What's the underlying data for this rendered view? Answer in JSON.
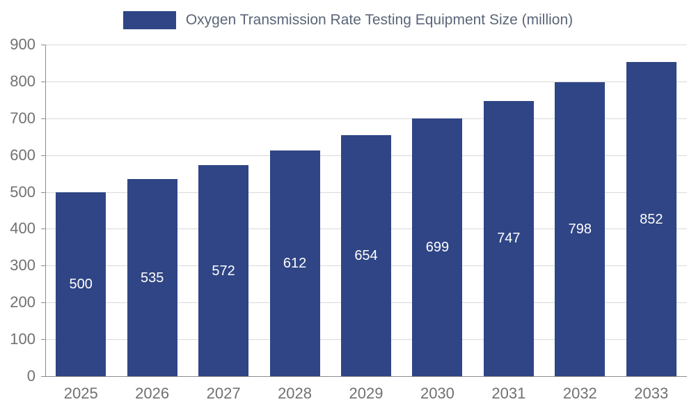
{
  "chart_data": {
    "type": "bar",
    "title": "Oxygen Transmission Rate Testing Equipment Size (million)",
    "categories": [
      "2025",
      "2026",
      "2027",
      "2028",
      "2029",
      "2030",
      "2031",
      "2032",
      "2033"
    ],
    "values": [
      500,
      535,
      572,
      612,
      654,
      699,
      747,
      798,
      852
    ],
    "xlabel": "",
    "ylabel": "",
    "ylim": [
      0,
      900
    ],
    "yticks": [
      0,
      100,
      200,
      300,
      400,
      500,
      600,
      700,
      800,
      900
    ],
    "grid": true,
    "legend_position": "top",
    "value_labels": "inside-center-white",
    "bar_color": "#2f4585",
    "value_label_color": "#ffffff",
    "axis_color": "#8c8c8c",
    "grid_color": "#d9d9d9",
    "tick_label_color": "#717171",
    "legend_text_color": "#5a6577"
  }
}
